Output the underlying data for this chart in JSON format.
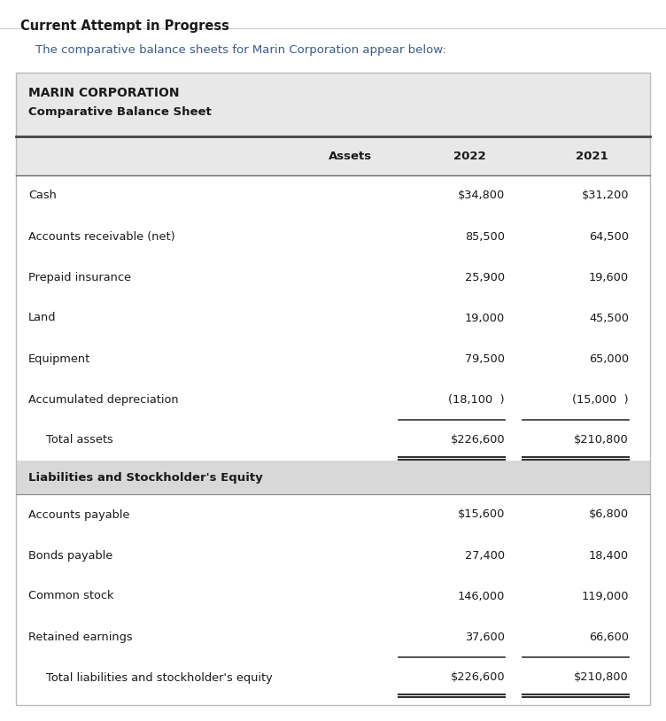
{
  "page_title": "Current Attempt in Progress",
  "subtitle": "The comparative balance sheets for Marin Corporation appear below:",
  "company_name": "MARIN CORPORATION",
  "sheet_name": "Comparative Balance Sheet",
  "col_header": [
    "Assets",
    "2022",
    "2021"
  ],
  "assets_rows": [
    {
      "label": "Cash",
      "val2022": "$34,800",
      "val2021": "$31,200",
      "indent": false
    },
    {
      "label": "Accounts receivable (net)",
      "val2022": "85,500",
      "val2021": "64,500",
      "indent": false
    },
    {
      "label": "Prepaid insurance",
      "val2022": "25,900",
      "val2021": "19,600",
      "indent": false
    },
    {
      "label": "Land",
      "val2022": "19,000",
      "val2021": "45,500",
      "indent": false
    },
    {
      "label": "Equipment",
      "val2022": "79,500",
      "val2021": "65,000",
      "indent": false
    },
    {
      "label": "Accumulated depreciation",
      "val2022": "(18,100  )",
      "val2021": "(15,000  )",
      "indent": false
    }
  ],
  "total_assets": {
    "label": "Total assets",
    "val2022": "$226,600",
    "val2021": "$210,800"
  },
  "liabilities_header": "Liabilities and Stockholder's Equity",
  "liabilities_rows": [
    {
      "label": "Accounts payable",
      "val2022": "$15,600",
      "val2021": "$6,800",
      "indent": false
    },
    {
      "label": "Bonds payable",
      "val2022": "27,400",
      "val2021": "18,400",
      "indent": false
    },
    {
      "label": "Common stock",
      "val2022": "146,000",
      "val2021": "119,000",
      "indent": false
    },
    {
      "label": "Retained earnings",
      "val2022": "37,600",
      "val2021": "66,600",
      "indent": false
    }
  ],
  "total_liabilities": {
    "label": "Total liabilities and stockholder's equity",
    "val2022": "$226,600",
    "val2021": "$210,800"
  },
  "white": "#ffffff",
  "light_gray": "#e8e8e8",
  "mid_gray": "#d8d8d8",
  "text_black": "#1a1a1a",
  "subtitle_color": "#3a5a8a",
  "line_color": "#555555",
  "border_color": "#bbbbbb",
  "fig_w": 7.52,
  "fig_h": 8.14,
  "dpi": 100
}
